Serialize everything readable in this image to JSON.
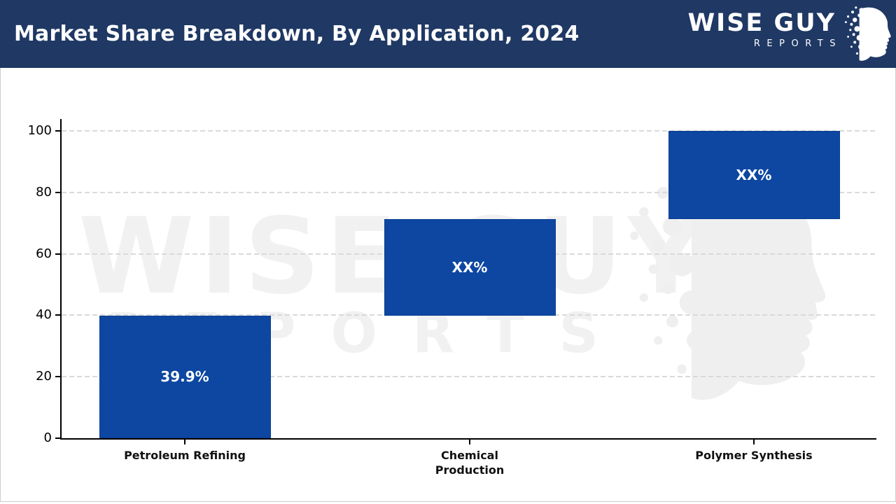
{
  "header": {
    "title": "Market Share Breakdown, By Application, 2024",
    "bg_color": "#1f3864",
    "logo": {
      "name": "WISE GUY",
      "sub": "REPORTS"
    }
  },
  "watermark": {
    "line1": "WISE GUY",
    "line2": "REPORTS"
  },
  "chart_data": {
    "type": "bar",
    "subtype": "waterfall-stacked-percentage",
    "title": "Market Share Breakdown, By Application, 2024",
    "year": "2024",
    "categories": [
      "Petroleum Refining",
      "Chemical Production",
      "Polymer Synthesis"
    ],
    "category_labels": [
      "Petroleum Refining",
      "Chemical\nProduction",
      "Polymer Synthesis"
    ],
    "segments": [
      {
        "category": "Petroleum Refining",
        "label": "39.9%",
        "start": 0,
        "end": 39.9
      },
      {
        "category": "Chemical Production",
        "label": "XX%",
        "start": 39.9,
        "end": 71.2
      },
      {
        "category": "Polymer Synthesis",
        "label": "XX%",
        "start": 71.2,
        "end": 100
      }
    ],
    "yticks": [
      0,
      20,
      40,
      60,
      80,
      100
    ],
    "ylim": [
      0,
      105
    ],
    "grid": "horizontal-dashed",
    "bar_color": "#0d47a1",
    "bar_edge_color": "#0a3f93",
    "bar_label_color": "#ffffff",
    "gridline_color": "#d9d9d9",
    "axis_color": "#000000",
    "header_color": "#1f3864",
    "watermark_color": "#f1f1f1"
  }
}
